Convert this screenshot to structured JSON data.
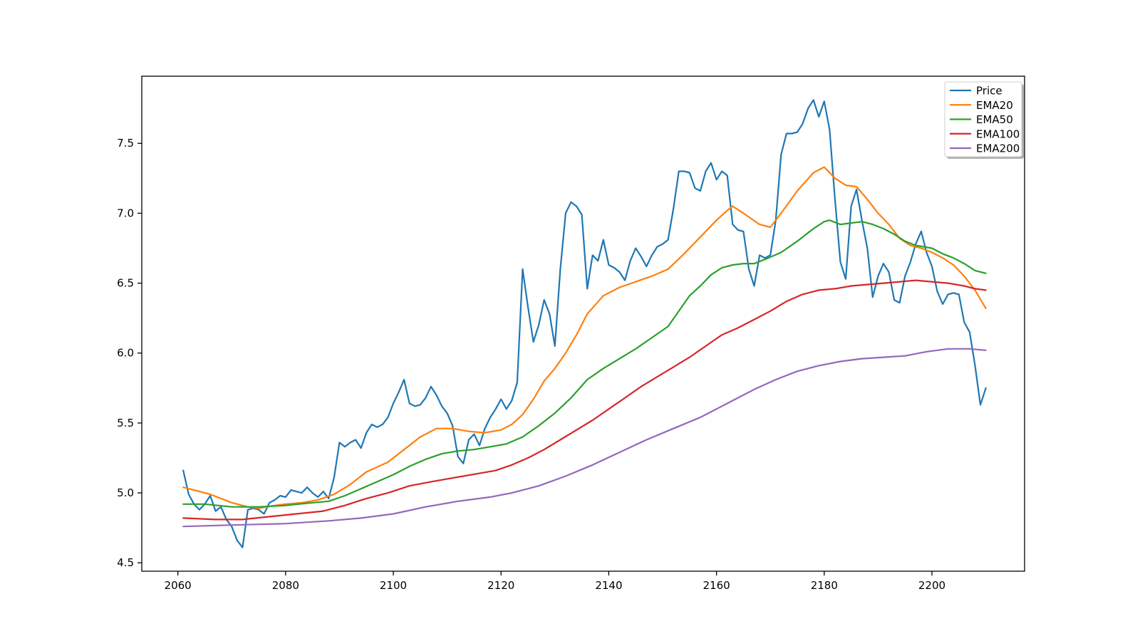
{
  "figure": {
    "background": "#ffffff",
    "axis_color": "#000000",
    "tick_label_color": "#000000"
  },
  "chart_data": {
    "type": "line",
    "title": "",
    "xlabel": "",
    "ylabel": "",
    "grid": false,
    "xlim": [
      2053.3,
      2217.2
    ],
    "ylim": [
      4.44,
      7.98
    ],
    "x_ticks": [
      2060,
      2080,
      2100,
      2120,
      2140,
      2160,
      2180,
      2200
    ],
    "y_ticks": [
      4.5,
      5.0,
      5.5,
      6.0,
      6.5,
      7.0,
      7.5
    ],
    "legend": {
      "position": "upper right",
      "labels": [
        "Price",
        "EMA20",
        "EMA50",
        "EMA100",
        "EMA200"
      ]
    },
    "series": [
      {
        "name": "Price",
        "color": "#1f77b4",
        "x_start": 2061,
        "x_step": 1,
        "y": [
          5.16,
          4.99,
          4.92,
          4.88,
          4.92,
          4.98,
          4.87,
          4.9,
          4.81,
          4.76,
          4.66,
          4.61,
          4.88,
          4.89,
          4.88,
          4.85,
          4.93,
          4.95,
          4.98,
          4.97,
          5.02,
          5.01,
          5.0,
          5.04,
          5.0,
          4.97,
          5.01,
          4.96,
          5.11,
          5.36,
          5.33,
          5.36,
          5.38,
          5.32,
          5.43,
          5.49,
          5.47,
          5.49,
          5.54,
          5.64,
          5.72,
          5.81,
          5.64,
          5.62,
          5.63,
          5.68,
          5.76,
          5.7,
          5.62,
          5.57,
          5.48,
          5.26,
          5.21,
          5.38,
          5.42,
          5.34,
          5.46,
          5.54,
          5.6,
          5.67,
          5.6,
          5.66,
          5.79,
          6.6,
          6.33,
          6.08,
          6.2,
          6.38,
          6.28,
          6.05,
          6.6,
          7.0,
          7.08,
          7.05,
          6.99,
          6.46,
          6.7,
          6.66,
          6.81,
          6.63,
          6.61,
          6.58,
          6.52,
          6.66,
          6.75,
          6.69,
          6.62,
          6.7,
          6.76,
          6.78,
          6.81,
          7.03,
          7.3,
          7.3,
          7.29,
          7.18,
          7.16,
          7.3,
          7.36,
          7.24,
          7.3,
          7.27,
          6.92,
          6.88,
          6.87,
          6.6,
          6.48,
          6.7,
          6.68,
          6.7,
          6.95,
          7.42,
          7.57,
          7.57,
          7.58,
          7.64,
          7.75,
          7.81,
          7.69,
          7.8,
          7.6,
          7.1,
          6.65,
          6.53,
          7.05,
          7.17,
          6.95,
          6.75,
          6.4,
          6.55,
          6.64,
          6.58,
          6.38,
          6.36,
          6.55,
          6.65,
          6.78,
          6.87,
          6.72,
          6.62,
          6.44,
          6.35,
          6.42,
          6.43,
          6.42,
          6.22,
          6.15,
          5.91,
          5.63,
          5.75
        ]
      },
      {
        "name": "EMA20",
        "color": "#ff7f0e",
        "x": [
          2061,
          2066,
          2070,
          2073,
          2075,
          2078,
          2080,
          2083,
          2086,
          2089,
          2092,
          2095,
          2099,
          2102,
          2105,
          2108,
          2111,
          2114,
          2117,
          2120,
          2122,
          2124,
          2126,
          2128,
          2130,
          2132,
          2134,
          2136,
          2139,
          2142,
          2145,
          2148,
          2151,
          2154,
          2157,
          2160,
          2162,
          2163,
          2165,
          2168,
          2170,
          2172,
          2175,
          2178,
          2180,
          2182,
          2184,
          2186,
          2188,
          2190,
          2192,
          2194,
          2196,
          2198,
          2200,
          2202,
          2204,
          2206,
          2208,
          2210
        ],
        "y": [
          5.04,
          4.99,
          4.93,
          4.9,
          4.89,
          4.91,
          4.92,
          4.93,
          4.95,
          4.99,
          5.06,
          5.15,
          5.22,
          5.31,
          5.4,
          5.46,
          5.46,
          5.44,
          5.43,
          5.45,
          5.49,
          5.56,
          5.67,
          5.8,
          5.89,
          6.0,
          6.13,
          6.28,
          6.41,
          6.47,
          6.51,
          6.55,
          6.6,
          6.71,
          6.83,
          6.95,
          7.02,
          7.05,
          7.0,
          6.92,
          6.9,
          7.0,
          7.16,
          7.29,
          7.33,
          7.25,
          7.2,
          7.19,
          7.1,
          7.0,
          6.92,
          6.82,
          6.77,
          6.75,
          6.72,
          6.68,
          6.63,
          6.55,
          6.45,
          6.32
        ]
      },
      {
        "name": "EMA50",
        "color": "#2ca02c",
        "x": [
          2061,
          2065,
          2070,
          2075,
          2080,
          2085,
          2088,
          2091,
          2094,
          2097,
          2100,
          2103,
          2106,
          2109,
          2112,
          2115,
          2118,
          2121,
          2124,
          2127,
          2130,
          2133,
          2136,
          2139,
          2142,
          2145,
          2148,
          2151,
          2153,
          2155,
          2157,
          2159,
          2161,
          2163,
          2165,
          2167,
          2169,
          2172,
          2175,
          2178,
          2180,
          2181,
          2183,
          2185,
          2187,
          2189,
          2191,
          2193,
          2195,
          2197,
          2200,
          2202,
          2204,
          2206,
          2208,
          2210
        ],
        "y": [
          4.92,
          4.92,
          4.9,
          4.9,
          4.91,
          4.93,
          4.94,
          4.98,
          5.03,
          5.08,
          5.13,
          5.19,
          5.24,
          5.28,
          5.3,
          5.31,
          5.33,
          5.35,
          5.4,
          5.48,
          5.57,
          5.68,
          5.81,
          5.89,
          5.96,
          6.03,
          6.11,
          6.19,
          6.3,
          6.41,
          6.48,
          6.56,
          6.61,
          6.63,
          6.64,
          6.64,
          6.67,
          6.72,
          6.8,
          6.89,
          6.94,
          6.95,
          6.92,
          6.93,
          6.94,
          6.92,
          6.89,
          6.85,
          6.8,
          6.77,
          6.75,
          6.71,
          6.68,
          6.64,
          6.59,
          6.57
        ]
      },
      {
        "name": "EMA100",
        "color": "#d62728",
        "x": [
          2061,
          2067,
          2072,
          2077,
          2082,
          2087,
          2091,
          2095,
          2099,
          2103,
          2107,
          2110,
          2113,
          2116,
          2119,
          2122,
          2125,
          2128,
          2131,
          2134,
          2137,
          2140,
          2143,
          2146,
          2149,
          2152,
          2155,
          2158,
          2161,
          2164,
          2167,
          2170,
          2173,
          2176,
          2179,
          2182,
          2185,
          2188,
          2191,
          2194,
          2197,
          2200,
          2203,
          2206,
          2208,
          2210
        ],
        "y": [
          4.82,
          4.81,
          4.81,
          4.83,
          4.85,
          4.87,
          4.91,
          4.96,
          5.0,
          5.05,
          5.08,
          5.1,
          5.12,
          5.14,
          5.16,
          5.2,
          5.25,
          5.31,
          5.38,
          5.45,
          5.52,
          5.6,
          5.68,
          5.76,
          5.83,
          5.9,
          5.97,
          6.05,
          6.13,
          6.18,
          6.24,
          6.3,
          6.37,
          6.42,
          6.45,
          6.46,
          6.48,
          6.49,
          6.5,
          6.51,
          6.52,
          6.51,
          6.5,
          6.48,
          6.46,
          6.45
        ]
      },
      {
        "name": "EMA200",
        "color": "#9467bd",
        "x": [
          2061,
          2070,
          2080,
          2088,
          2094,
          2100,
          2106,
          2112,
          2118,
          2122,
          2127,
          2132,
          2137,
          2142,
          2147,
          2152,
          2157,
          2162,
          2167,
          2171,
          2175,
          2179,
          2183,
          2187,
          2191,
          2195,
          2199,
          2203,
          2207,
          2210
        ],
        "y": [
          4.76,
          4.77,
          4.78,
          4.8,
          4.82,
          4.85,
          4.9,
          4.94,
          4.97,
          5.0,
          5.05,
          5.12,
          5.2,
          5.29,
          5.38,
          5.46,
          5.54,
          5.64,
          5.74,
          5.81,
          5.87,
          5.91,
          5.94,
          5.96,
          5.97,
          5.98,
          6.01,
          6.03,
          6.03,
          6.02
        ]
      }
    ]
  }
}
